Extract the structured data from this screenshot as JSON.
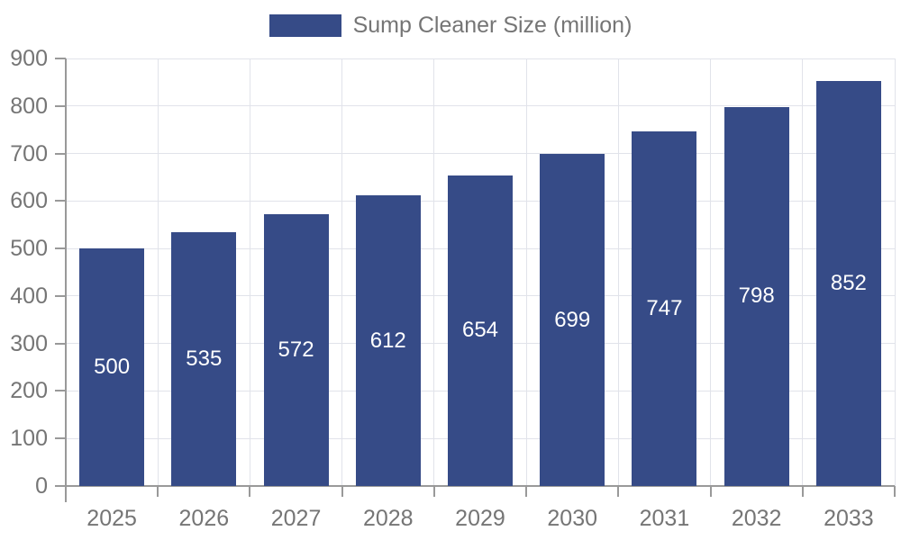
{
  "chart_data": {
    "type": "bar",
    "title": "Sump Cleaner Size (million)",
    "categories": [
      "2025",
      "2026",
      "2027",
      "2028",
      "2029",
      "2030",
      "2031",
      "2032",
      "2033"
    ],
    "series": [
      {
        "name": "Sump Cleaner Size (million)",
        "values": [
          500,
          535,
          572,
          612,
          654,
          699,
          747,
          798,
          852
        ]
      }
    ],
    "data_labels_shown": true,
    "xlabel": "",
    "ylabel": "",
    "ylim": [
      0,
      900
    ],
    "yticks": [
      0,
      100,
      200,
      300,
      400,
      500,
      600,
      700,
      800,
      900
    ],
    "grid": true,
    "legend_position": "top-center",
    "colors": {
      "bar": "#364b87",
      "data_label": "#ffffff",
      "axis_text": "#757575",
      "axis_line": "#999999",
      "gridline": "#e1e3ea",
      "background": "#ffffff"
    }
  }
}
